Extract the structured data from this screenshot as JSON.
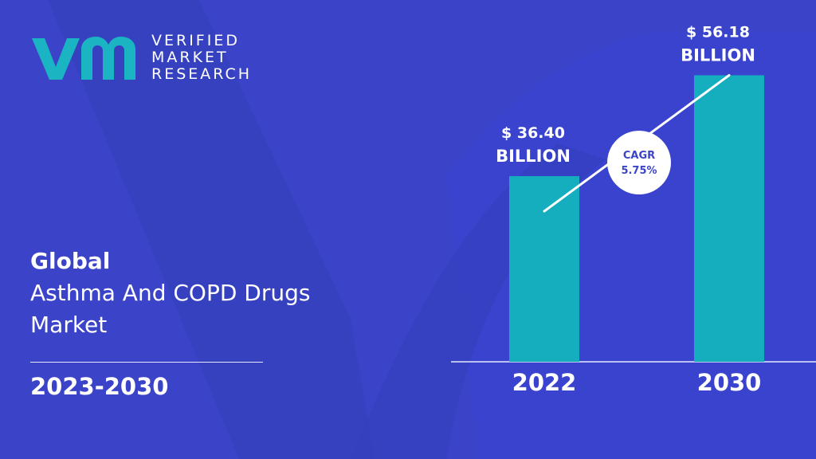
{
  "brand": {
    "line1": "VERIFIED",
    "line2": "MARKET",
    "line3": "RESEARCH"
  },
  "title": {
    "line1": "Global",
    "line2": "Asthma And COPD Drugs",
    "line3": "Market"
  },
  "period": "2023-2030",
  "cagr": {
    "label": "CAGR",
    "value": "5.75%"
  },
  "colors": {
    "background": "#3b44c8",
    "bar": "#14aebf",
    "logo": "#1bb4c2",
    "text": "#ffffff",
    "cagr_text": "#3b44c8"
  },
  "chart_data": {
    "type": "bar",
    "categories": [
      "2022",
      "2030"
    ],
    "values": [
      36.4,
      56.18
    ],
    "value_labels": [
      [
        "$ 36.40",
        "BILLION"
      ],
      [
        "$ 56.18",
        "BILLION"
      ]
    ],
    "ylim": [
      0,
      60
    ],
    "grid": false
  }
}
